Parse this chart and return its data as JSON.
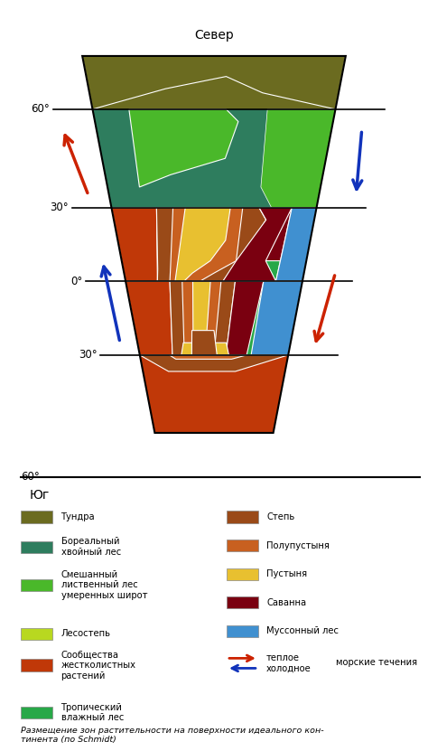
{
  "title_north": "Север",
  "title_south": "Юг",
  "background_color": "#ffffff",
  "tundra_color": "#6b6b20",
  "boreal_color": "#2e7d5e",
  "mixed_color": "#4ab82a",
  "lesostep_color": "#b8d820",
  "shrub_color": "#c03808",
  "trop_color": "#28a848",
  "steppe_color": "#9a4a18",
  "semi_color": "#c86020",
  "desert_color": "#e8c030",
  "savanna_color": "#7a0010",
  "monsoon_color": "#4090d0",
  "legend_colors_left": [
    "#6b6b20",
    "#2e7d5e",
    "#4ab82a",
    "#b8d820",
    "#c03808",
    "#28a848"
  ],
  "legend_colors_right": [
    "#9a4a18",
    "#c86020",
    "#e8c030",
    "#7a0010",
    "#4090d0",
    null
  ],
  "legend_labels_left": [
    "Тундра",
    "Бореальный\nхвойный лес",
    "Смешанный\nлиственный лес\nумеренных широт",
    "Лесостепь",
    "Сообщества\nжестколистных\nрастений",
    "Тропический\nвлажный лес"
  ],
  "legend_labels_right": [
    "Степь",
    "Полупустыня",
    "Пустыня",
    "Саванна",
    "Муссонный лес",
    "теплое\nхолодное"
  ],
  "caption": "Размещение зон растительности на поверхности идеального кон-\nтинента (по Schmidt)"
}
